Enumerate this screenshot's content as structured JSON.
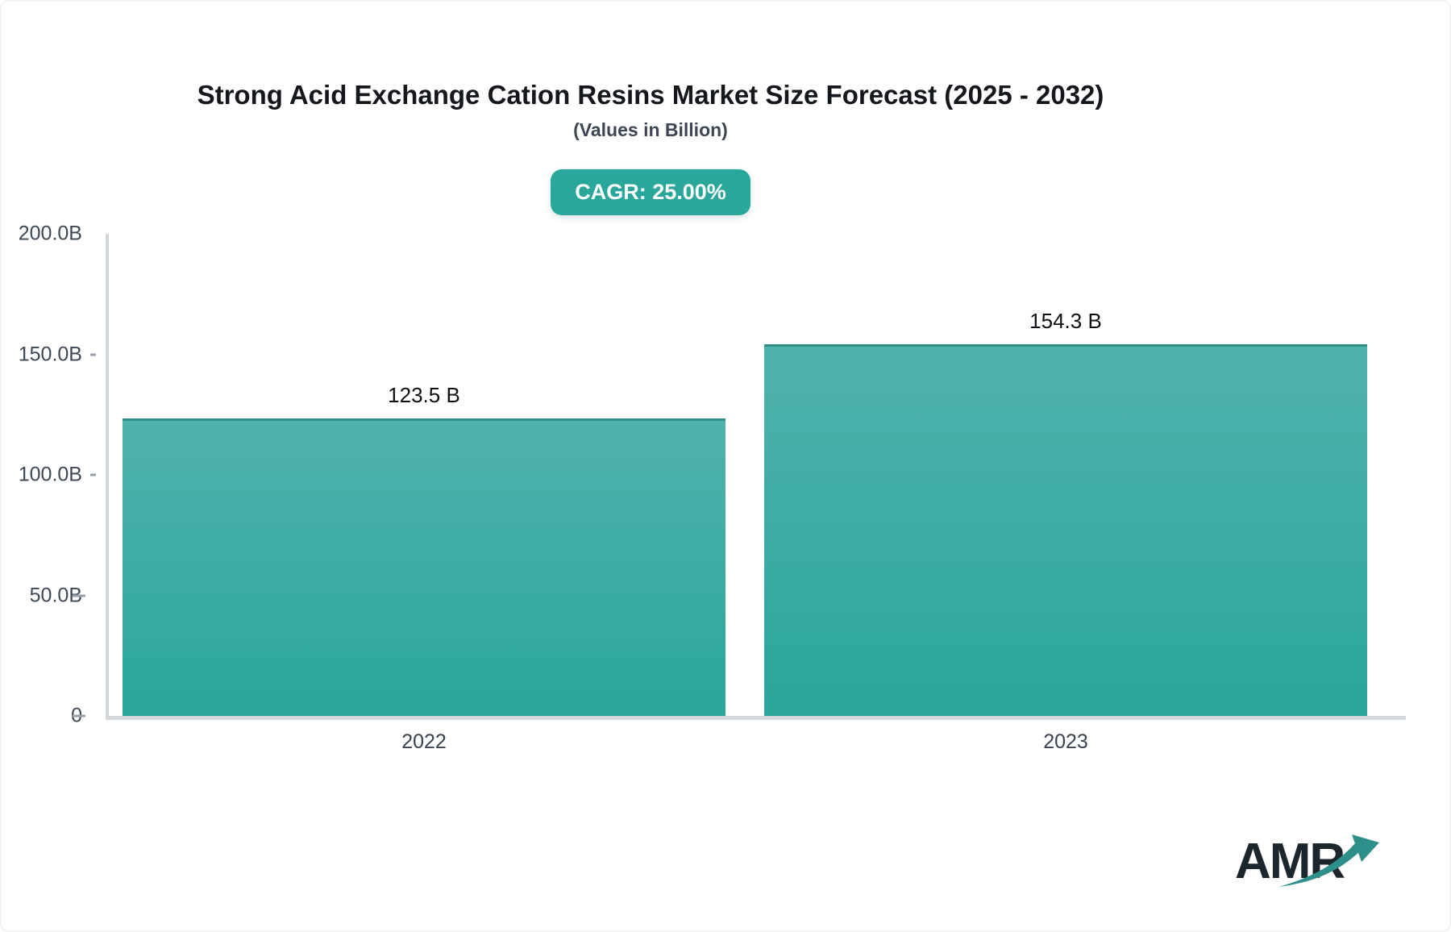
{
  "header": {
    "title": "Strong Acid Exchange Cation Resins Market Size Forecast (2025 - 2032)",
    "subtitle": "(Values in Billion)",
    "cagr_badge": "CAGR: 25.00%",
    "badge_color": "#2aa79b"
  },
  "chart_data": {
    "type": "bar",
    "title": "Strong Acid Exchange Cation Resins Market Size Forecast (2025 - 2032)",
    "subtitle": "(Values in Billion)",
    "cagr": "25.00%",
    "unit": "Billion",
    "categories": [
      "2022",
      "2023"
    ],
    "values": [
      123.5,
      154.3
    ],
    "value_labels": [
      "123.5 B",
      "154.3 B"
    ],
    "ylim": [
      0,
      200
    ],
    "yticks": [
      {
        "label": "200.0B",
        "value": 200
      },
      {
        "label": "150.0B",
        "value": 150
      },
      {
        "label": "100.0B",
        "value": 100
      },
      {
        "label": "50.0B",
        "value": 50
      },
      {
        "label": "0",
        "value": 0
      }
    ],
    "grid": false,
    "legend": false,
    "colors": {
      "bar_gradient_top": "#4fb3ab",
      "bar_gradient_bottom": "#2aa69c",
      "bar_top_border": "#2d8f86",
      "axis_line": "#d2d7dc",
      "tick_label": "#3f4956"
    }
  },
  "logo": {
    "text": "AMR",
    "text_color": "#1b262d",
    "arrow_color": "#2d8f8a"
  }
}
